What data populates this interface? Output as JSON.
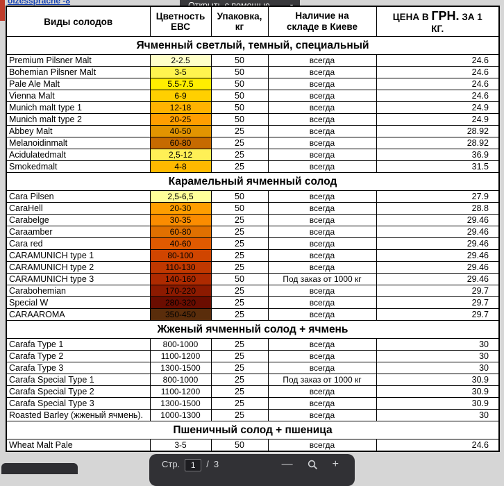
{
  "viewer": {
    "top_link": "olzessprache -8",
    "open_with_label": "Открыть с помощью…",
    "caret": "▾",
    "page_label": "Стр.",
    "page_current": "1",
    "page_divider": "/",
    "page_total": "3",
    "zoom_out_glyph": "—",
    "zoom_in_glyph": "+"
  },
  "table": {
    "headers": {
      "col_malt": "Виды солодов",
      "col_color_l1": "Цветность",
      "col_color_l2": "ЕВС",
      "col_pack_l1": "Упаковка,",
      "col_pack_l2": "кг",
      "col_stock": "Наличие на складе в Киеве",
      "price_l1a": "ЦЕНА В",
      "price_grn": "ГРН.",
      "price_l1b": "ЗА 1",
      "price_l2": "КГ."
    },
    "sections": [
      {
        "title": "Ячменный светлый, темный, специальный",
        "rows": [
          {
            "name": "Premium Pilsner Malt",
            "ebc": "2-2.5",
            "color": "#FFFFC8",
            "pack": "50",
            "stock": "всегда",
            "price": "24.6"
          },
          {
            "name": "Bohemian Pilsner Malt",
            "ebc": "3-5",
            "color": "#FFF44F",
            "pack": "50",
            "stock": "всегда",
            "price": "24.6"
          },
          {
            "name": "Pale Ale Malt",
            "ebc": "5.5-7.5",
            "color": "#FFED00",
            "pack": "50",
            "stock": "всегда",
            "price": "24.6"
          },
          {
            "name": "Vienna Malt",
            "ebc": "6-9",
            "color": "#FFD000",
            "pack": "50",
            "stock": "всегда",
            "price": "24.6"
          },
          {
            "name": "Munich malt type 1",
            "ebc": "12-18",
            "color": "#FFB300",
            "pack": "50",
            "stock": "всегда",
            "price": "24.9"
          },
          {
            "name": "Munich malt type 2",
            "ebc": "20-25",
            "color": "#FF9E00",
            "pack": "50",
            "stock": "всегда",
            "price": "24.9"
          },
          {
            "name": "Abbey Malt",
            "ebc": "40-50",
            "color": "#E29400",
            "pack": "25",
            "stock": "всегда",
            "price": "28.92"
          },
          {
            "name": "Melanoidinmalt",
            "ebc": "60-80",
            "color": "#C66A00",
            "pack": "25",
            "stock": "всегда",
            "price": "28.92"
          },
          {
            "name": "Acidulatedmalt",
            "ebc": "2,5-12",
            "color": "#FFF056",
            "pack": "25",
            "stock": "всегда",
            "price": "36.9"
          },
          {
            "name": "Smokedmalt",
            "ebc": "4-8",
            "color": "#FFB900",
            "pack": "25",
            "stock": "всегда",
            "price": "31.5"
          }
        ]
      },
      {
        "title": "Карамельный ячменный солод",
        "rows": [
          {
            "name": "Cara Pilsen",
            "ebc": "2,5-6,5",
            "color": "#FFFF99",
            "pack": "50",
            "stock": "всегда",
            "price": "27.9"
          },
          {
            "name": "CaraHell",
            "ebc": "20-30",
            "color": "#FF9E00",
            "pack": "50",
            "stock": "всегда",
            "price": "28.8"
          },
          {
            "name": "Carabelge",
            "ebc": "30-35",
            "color": "#FB8C00",
            "pack": "25",
            "stock": "всегда",
            "price": "29.46"
          },
          {
            "name": "Caraamber",
            "ebc": "60-80",
            "color": "#E07000",
            "pack": "25",
            "stock": "всегда",
            "price": "29.46"
          },
          {
            "name": "Cara red",
            "ebc": "40-60",
            "color": "#E05A00",
            "pack": "25",
            "stock": "всегда",
            "price": "29.46"
          },
          {
            "name": "CARAMUNICH type 1",
            "ebc": "80-100",
            "color": "#D04500",
            "pack": "25",
            "stock": "всегда",
            "price": "29.46"
          },
          {
            "name": "CARAMUNICH type 2",
            "ebc": "110-130",
            "color": "#C03800",
            "pack": "25",
            "stock": "всегда",
            "price": "29.46"
          },
          {
            "name": "CARAMUNICH type 3",
            "ebc": "140-160",
            "color": "#AE2A00",
            "pack": "50",
            "stock": "Под заказ от 1000 кг",
            "price": "29.46"
          },
          {
            "name": "Carabohemian",
            "ebc": "170-220",
            "color": "#8C1A00",
            "pack": "25",
            "stock": "всегда",
            "price": "29.7"
          },
          {
            "name": "Special W",
            "ebc": "280-320",
            "color": "#6B0D00",
            "pack": "25",
            "stock": "всегда",
            "price": "29.7"
          },
          {
            "name": "CARAAROMA",
            "ebc": "350-450",
            "color": "#5A2D0B",
            "pack": "25",
            "stock": "всегда",
            "price": "29.7"
          }
        ]
      },
      {
        "title": "Жженый ячменный солод + ячмень",
        "rows": [
          {
            "name": "Carafa Type 1",
            "ebc": "800-1000",
            "color": "",
            "pack": "25",
            "stock": "всегда",
            "price": "30"
          },
          {
            "name": "Carafa Type 2",
            "ebc": "1100-1200",
            "color": "",
            "pack": "25",
            "stock": "всегда",
            "price": "30"
          },
          {
            "name": "Carafa Type 3",
            "ebc": "1300-1500",
            "color": "",
            "pack": "25",
            "stock": "всегда",
            "price": "30"
          },
          {
            "name": "Carafa Special Type 1",
            "ebc": "800-1000",
            "color": "",
            "pack": "25",
            "stock": "Под заказ от 1000 кг",
            "price": "30.9"
          },
          {
            "name": "Carafa Special Type 2",
            "ebc": "1100-1200",
            "color": "",
            "pack": "25",
            "stock": "всегда",
            "price": "30.9"
          },
          {
            "name": "Carafa Special Type 3",
            "ebc": "1300-1500",
            "color": "",
            "pack": "25",
            "stock": "всегда",
            "price": "30.9"
          },
          {
            "name": "Roasted Barley (жженый ячмень).",
            "ebc": "1000-1300",
            "color": "",
            "pack": "25",
            "stock": "всегда",
            "price": "30"
          }
        ]
      },
      {
        "title": "Пшеничный солод + пшеница",
        "rows": [
          {
            "name": "Wheat Malt Pale",
            "ebc": "3-5",
            "color": "",
            "pack": "50",
            "stock": "всегда",
            "price": "24.6"
          }
        ]
      }
    ]
  }
}
